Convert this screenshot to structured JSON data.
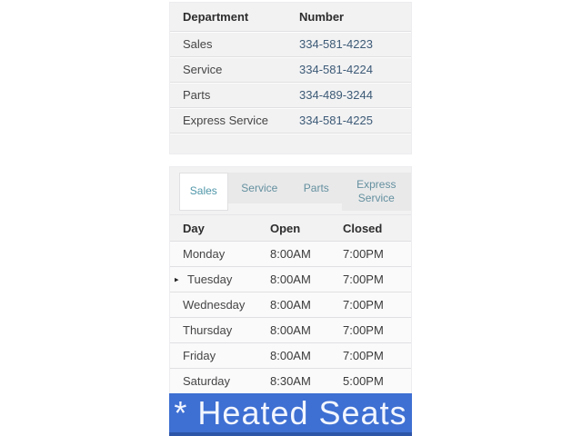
{
  "directory": {
    "headers": [
      "Department",
      "Number"
    ],
    "rows": [
      {
        "department": "Sales",
        "number": "334-581-4223"
      },
      {
        "department": "Service",
        "number": "334-581-4224"
      },
      {
        "department": "Parts",
        "number": "334-489-3244"
      },
      {
        "department": "Express Service",
        "number": "334-581-4225"
      }
    ]
  },
  "hours": {
    "tabs": [
      {
        "label": "Sales",
        "active": true
      },
      {
        "label": "Service",
        "active": false
      },
      {
        "label": "Parts",
        "active": false
      },
      {
        "label": "Express Service",
        "active": false
      }
    ],
    "headers": [
      "Day",
      "Open",
      "Closed"
    ],
    "current_day_marker": "▸",
    "rows": [
      {
        "day": "Monday",
        "open": "8:00AM",
        "closed": "7:00PM",
        "current": false
      },
      {
        "day": "Tuesday",
        "open": "8:00AM",
        "closed": "7:00PM",
        "current": true
      },
      {
        "day": "Wednesday",
        "open": "8:00AM",
        "closed": "7:00PM",
        "current": false
      },
      {
        "day": "Thursday",
        "open": "8:00AM",
        "closed": "7:00PM",
        "current": false
      },
      {
        "day": "Friday",
        "open": "8:00AM",
        "closed": "7:00PM",
        "current": false
      },
      {
        "day": "Saturday",
        "open": "8:30AM",
        "closed": "5:00PM",
        "current": false
      }
    ]
  },
  "banner": {
    "text": "* Heated Seats"
  },
  "colors": {
    "banner_bg": "#3e6fd2",
    "banner_edge": "#2d55a8",
    "banner_text": "#f2f6ff",
    "card_bg": "#f2f2f3",
    "phone_link": "#3c5a76",
    "tab_active_text": "#4f96a8",
    "tab_inactive_text": "#64909f"
  }
}
